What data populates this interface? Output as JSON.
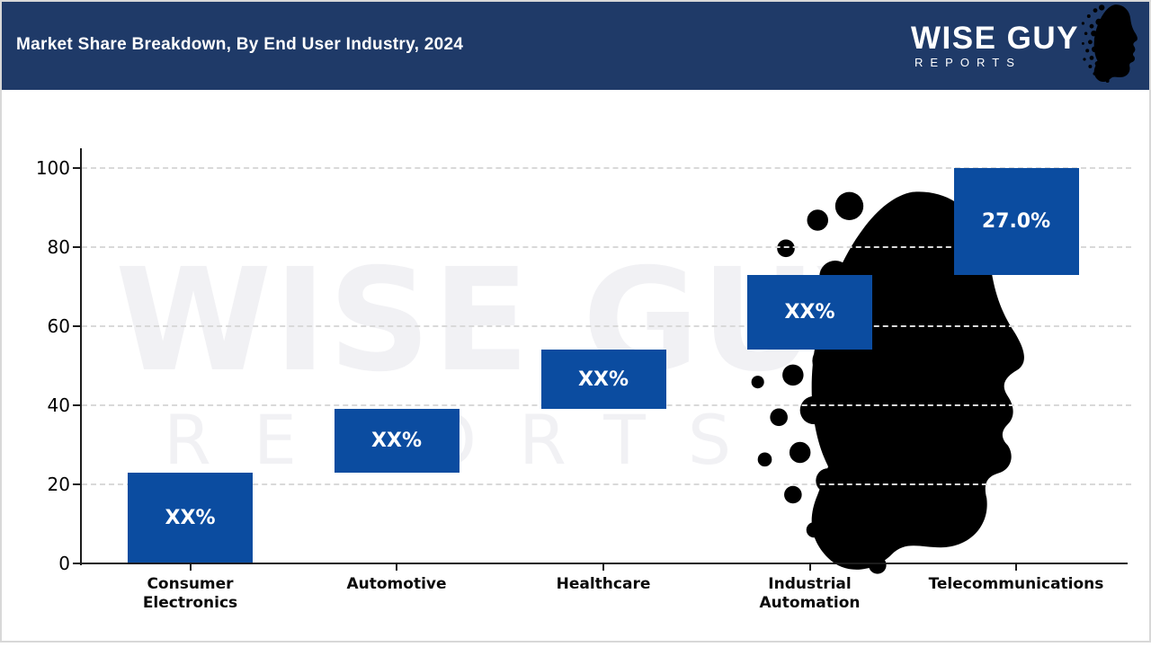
{
  "header": {
    "title": "Market Share Breakdown, By End User Industry, 2024",
    "bg_color": "#1f3a68",
    "logo": {
      "brand": "WISE GUY",
      "tagline": "REPORTS"
    }
  },
  "watermark": {
    "brand": "WISE GUY",
    "tagline": "REPORTS"
  },
  "chart_data": {
    "type": "bar",
    "variant": "floating-waterfall",
    "title": "Market Share Breakdown, By End User Industry, 2024",
    "categories": [
      "Consumer Electronics",
      "Automotive",
      "Healthcare",
      "Industrial Automation",
      "Telecommunications"
    ],
    "category_label_lines": [
      [
        "Consumer",
        "Electronics"
      ],
      [
        "Automotive"
      ],
      [
        "Healthcare"
      ],
      [
        "Industrial",
        "Automation"
      ],
      [
        "Telecommunications"
      ]
    ],
    "bars": [
      {
        "category": "Consumer Electronics",
        "start": 0,
        "end": 23,
        "value": 23,
        "label": "XX%"
      },
      {
        "category": "Automotive",
        "start": 23,
        "end": 39,
        "value": 16,
        "label": "XX%"
      },
      {
        "category": "Healthcare",
        "start": 39,
        "end": 54,
        "value": 15,
        "label": "XX%"
      },
      {
        "category": "Industrial Automation",
        "start": 54,
        "end": 73,
        "value": 19,
        "label": "XX%"
      },
      {
        "category": "Telecommunications",
        "start": 73,
        "end": 100,
        "value": 27,
        "label": "27.0%"
      }
    ],
    "xlabel": "",
    "ylabel": "",
    "y_ticks": [
      0,
      20,
      40,
      60,
      80,
      100
    ],
    "ylim": [
      0,
      105
    ],
    "grid": {
      "axis": "y",
      "style": "dashed"
    },
    "legend": null,
    "colors": {
      "bar": "#0b4ca0",
      "bar_label": "#ffffff",
      "grid": "#d9d9d9",
      "spine": "#1c1c1c",
      "tick_label": "#000000"
    }
  }
}
